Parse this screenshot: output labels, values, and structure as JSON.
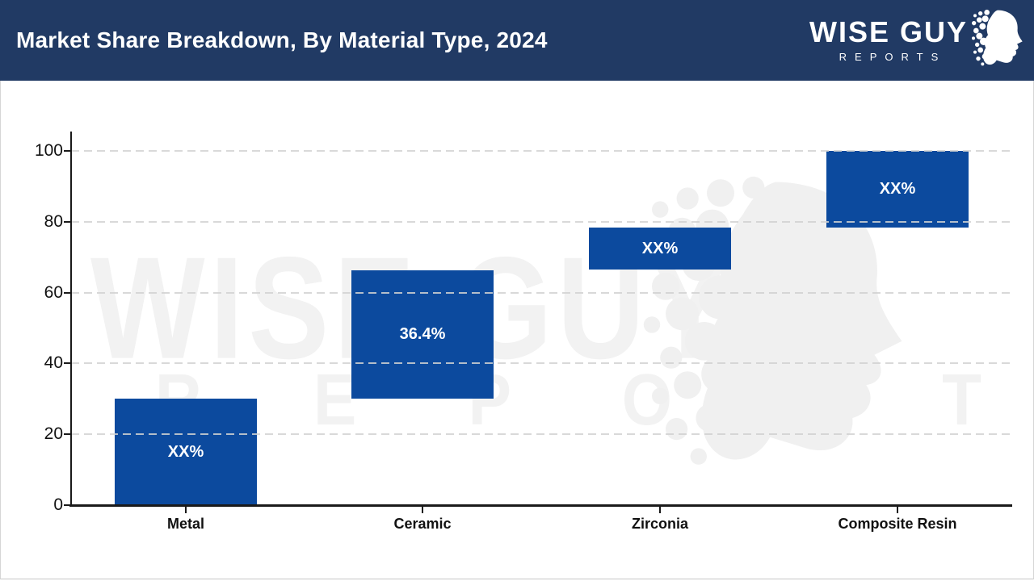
{
  "header": {
    "title": "Market Share Breakdown, By Material Type, 2024",
    "logo": {
      "line1": "WISE GUY",
      "line2": "REPORTS"
    }
  },
  "watermark": {
    "line1": "WISE GUY",
    "line2": "R E P O R T S"
  },
  "chart_data": {
    "type": "bar",
    "subtype": "waterfall",
    "title": "Market Share Breakdown, By Material Type, 2024",
    "categories": [
      "Metal",
      "Ceramic",
      "Zirconia",
      "Composite Resin"
    ],
    "segments": [
      {
        "category": "Metal",
        "start": 0,
        "end": 30,
        "label": "XX%"
      },
      {
        "category": "Ceramic",
        "start": 30,
        "end": 66.4,
        "label": "36.4%"
      },
      {
        "category": "Zirconia",
        "start": 66.4,
        "end": 78.4,
        "label": "XX%"
      },
      {
        "category": "Composite Resin",
        "start": 78.4,
        "end": 100,
        "label": "XX%"
      }
    ],
    "yticks": [
      0,
      20,
      40,
      60,
      80,
      100
    ],
    "ylim": [
      0,
      105
    ],
    "xlabel": "",
    "ylabel": "",
    "grid": "horizontal-dashed-over-bars",
    "legend": "none",
    "bar_color": "#0c4a9e",
    "bar_label_color": "#ffffff"
  },
  "colors": {
    "header_bg": "#213a64",
    "bar": "#0c4a9e",
    "grid": "#d2d2d2",
    "axis": "#1a1a1a",
    "watermark": "#f2f2f2",
    "panel_border": "#d6d6d6"
  }
}
